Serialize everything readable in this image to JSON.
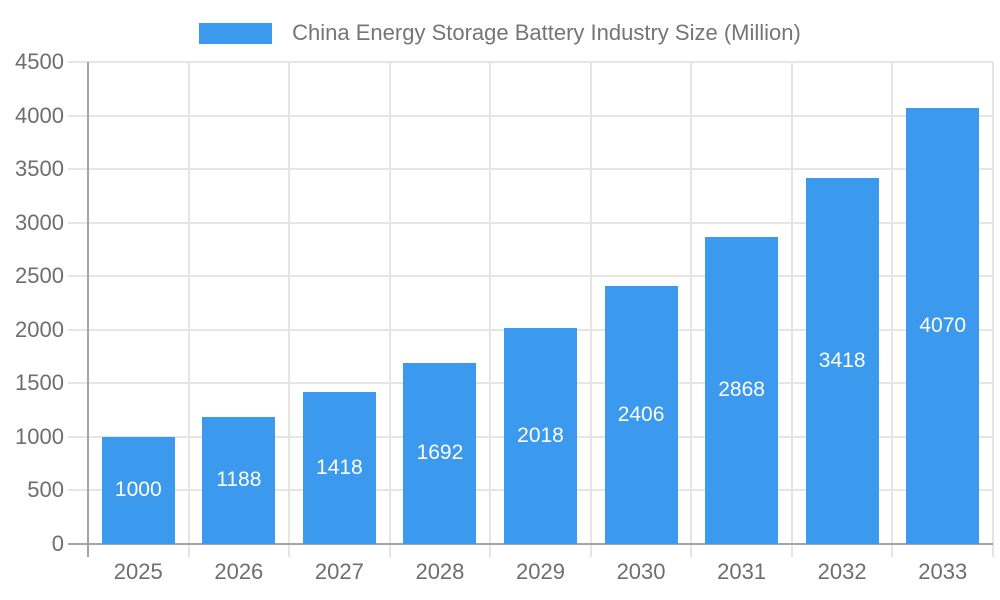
{
  "legend": {
    "label": "China Energy Storage Battery Industry Size (Million)"
  },
  "chart_data": {
    "type": "bar",
    "title": "China Energy Storage Battery Industry Size (Million)",
    "categories": [
      "2025",
      "2026",
      "2027",
      "2028",
      "2029",
      "2030",
      "2031",
      "2032",
      "2033"
    ],
    "values": [
      1000,
      1188,
      1418,
      1692,
      2018,
      2406,
      2868,
      3418,
      4070
    ],
    "series_name": "China Energy Storage Battery Industry Size (Million)",
    "xlabel": "",
    "ylabel": "",
    "ylim": [
      0,
      4500
    ],
    "yticks": [
      0,
      500,
      1000,
      1500,
      2000,
      2500,
      3000,
      3500,
      4000,
      4500
    ],
    "grid": true,
    "legend_position": "top",
    "value_labels": "centered-in-bar",
    "colors": {
      "bar": "#3b99ee",
      "grid_light": "#e5e5e5",
      "axis_dark": "#a4a4a4",
      "tick_text": "#6e6e6e",
      "legend_text": "#757575",
      "value_label_text": "#ffffff",
      "background": "#ffffff"
    }
  }
}
